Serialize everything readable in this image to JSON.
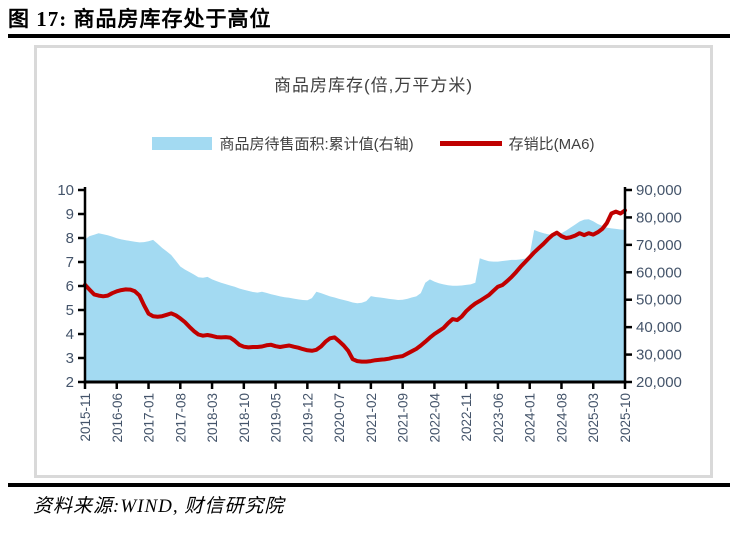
{
  "figure": {
    "title": "图 17: 商品房库存处于高位"
  },
  "source": {
    "text": "资料来源:WIND, 财信研究院"
  },
  "colors": {
    "area_blue": "#A3DAF2",
    "line_red": "#C00000",
    "axis_label": "#44546A",
    "chart_text": "#404040",
    "panel_border": "#D9D9D9",
    "axis_line": "#000000"
  },
  "chart_data": {
    "type": "area+line",
    "title": "商品房库存(倍,万平方米)",
    "x_start": "2015-11",
    "x_end": "2025-10",
    "x_monthly": true,
    "tick_interval_months": 7,
    "x_tick_labels": [
      "2015-11",
      "2016-06",
      "2017-01",
      "2017-08",
      "2018-03",
      "2018-10",
      "2019-05",
      "2019-12",
      "2020-07",
      "2021-02",
      "2021-09",
      "2022-04",
      "2022-11",
      "2023-06",
      "2024-01",
      "2024-08",
      "2025-03",
      "2025-10"
    ],
    "left_axis": {
      "min": 2,
      "max": 10,
      "ticks": [
        10,
        9,
        8,
        7,
        6,
        5,
        4,
        3,
        2
      ]
    },
    "right_axis": {
      "min": 20000,
      "max": 90000,
      "ticks": [
        90000,
        80000,
        70000,
        60000,
        50000,
        40000,
        30000,
        20000
      ],
      "tick_labels": [
        "90,000",
        "80,000",
        "70,000",
        "60,000",
        "50,000",
        "40,000",
        "30,000",
        "20,000"
      ]
    },
    "grid": false,
    "legend_position": "top",
    "series": [
      {
        "name": "商品房待售面积:累计值(右轴)",
        "type": "area",
        "axis": "right",
        "color": "#A3DAF2",
        "values": [
          72000,
          73200,
          73700,
          74200,
          73900,
          73500,
          73000,
          72400,
          72000,
          71700,
          71400,
          71100,
          70900,
          71000,
          71300,
          71800,
          70400,
          68900,
          67600,
          66300,
          64200,
          62100,
          61000,
          60100,
          59200,
          58200,
          58000,
          58300,
          57400,
          56800,
          56200,
          55700,
          55200,
          54700,
          54100,
          53600,
          53200,
          52800,
          52600,
          52900,
          52500,
          52000,
          51600,
          51200,
          50900,
          50700,
          50400,
          50100,
          49900,
          49800,
          50600,
          52900,
          52400,
          51800,
          51200,
          50800,
          50300,
          49900,
          49500,
          49000,
          48700,
          48900,
          49500,
          51300,
          51000,
          50800,
          50600,
          50300,
          50100,
          49900,
          50000,
          50300,
          50800,
          51200,
          52400,
          56200,
          57400,
          56600,
          56000,
          55600,
          55300,
          55100,
          55100,
          55200,
          55400,
          55600,
          56200,
          65100,
          64500,
          64000,
          63900,
          63900,
          64100,
          64300,
          64500,
          64500,
          64700,
          65000,
          66500,
          75400,
          74800,
          74300,
          73900,
          73600,
          73800,
          74300,
          75200,
          76300,
          77400,
          78500,
          79200,
          79300,
          78600,
          77600,
          76900,
          76300,
          76000,
          75800,
          75600,
          75400
        ]
      },
      {
        "name": "存销比(MA6)",
        "type": "line",
        "axis": "left",
        "color": "#C00000",
        "values": [
          6.05,
          5.85,
          5.65,
          5.6,
          5.57,
          5.6,
          5.7,
          5.78,
          5.83,
          5.86,
          5.85,
          5.78,
          5.6,
          5.2,
          4.85,
          4.74,
          4.72,
          4.74,
          4.8,
          4.86,
          4.78,
          4.65,
          4.5,
          4.3,
          4.12,
          3.98,
          3.93,
          3.96,
          3.92,
          3.87,
          3.86,
          3.87,
          3.85,
          3.72,
          3.55,
          3.47,
          3.44,
          3.46,
          3.46,
          3.48,
          3.53,
          3.55,
          3.49,
          3.46,
          3.49,
          3.52,
          3.47,
          3.43,
          3.37,
          3.32,
          3.3,
          3.34,
          3.48,
          3.68,
          3.82,
          3.86,
          3.7,
          3.52,
          3.3,
          2.95,
          2.87,
          2.85,
          2.85,
          2.87,
          2.91,
          2.93,
          2.94,
          2.97,
          3.02,
          3.05,
          3.08,
          3.18,
          3.28,
          3.38,
          3.52,
          3.68,
          3.85,
          4.0,
          4.12,
          4.25,
          4.45,
          4.62,
          4.58,
          4.72,
          4.95,
          5.12,
          5.27,
          5.38,
          5.5,
          5.62,
          5.8,
          5.97,
          6.04,
          6.2,
          6.38,
          6.58,
          6.8,
          7.0,
          7.2,
          7.4,
          7.58,
          7.75,
          7.95,
          8.12,
          8.22,
          8.08,
          8.0,
          8.03,
          8.1,
          8.2,
          8.12,
          8.2,
          8.14,
          8.24,
          8.38,
          8.62,
          9.02,
          9.1,
          9.02,
          9.15
        ]
      }
    ]
  }
}
